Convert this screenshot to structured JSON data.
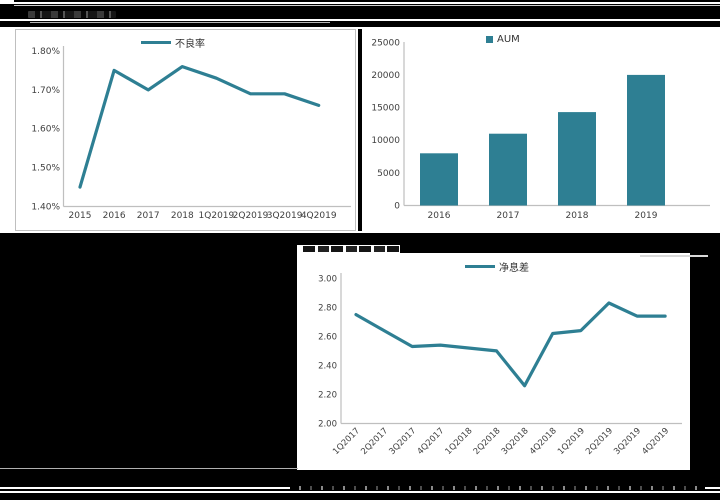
{
  "page": {
    "background_color": "#ffffff",
    "banner_color": "#000000",
    "accent_color": "#2e7f93",
    "axis_color": "#bfbfbf",
    "tick_text_color": "#404040",
    "note": "three financial charts separated by redacted (blacked-out) title banners"
  },
  "banners": {
    "top_redacted": true,
    "middle_redacted": true,
    "footer_redacted": true
  },
  "chart_data": [
    {
      "type": "line",
      "title": "",
      "title_redacted": false,
      "legend_position": "top-center",
      "grid": false,
      "line_color": "#2e7f93",
      "categories": [
        "2015",
        "2016",
        "2017",
        "2018",
        "1Q2019",
        "2Q2019",
        "3Q2019",
        "4Q2019"
      ],
      "series": [
        {
          "name": "不良率",
          "values": [
            1.45,
            1.75,
            1.7,
            1.76,
            1.73,
            1.69,
            1.69,
            1.66
          ]
        }
      ],
      "ylim": [
        1.4,
        1.8
      ],
      "yticks": [
        "1.40%",
        "1.50%",
        "1.60%",
        "1.70%",
        "1.80%"
      ],
      "xlabel": "",
      "ylabel": ""
    },
    {
      "type": "bar",
      "title": "",
      "title_redacted": false,
      "legend_position": "top-center",
      "grid": false,
      "bar_color": "#2e7f93",
      "categories": [
        "2016",
        "2017",
        "2018",
        "2019"
      ],
      "series": [
        {
          "name": "AUM",
          "values": [
            8000,
            11000,
            14300,
            20000
          ]
        }
      ],
      "ylim": [
        0,
        25000
      ],
      "yticks": [
        "0",
        "5000",
        "10000",
        "15000",
        "20000",
        "25000"
      ],
      "xlabel": "",
      "ylabel": ""
    },
    {
      "type": "line",
      "title": "",
      "title_redacted": true,
      "legend_position": "top-center",
      "grid": false,
      "line_color": "#2e7f93",
      "x_label_rotation": -45,
      "categories": [
        "1Q2017",
        "2Q2017",
        "3Q2017",
        "4Q2017",
        "1Q2018",
        "2Q2018",
        "3Q2018",
        "4Q2018",
        "1Q2019",
        "2Q2019",
        "3Q2019",
        "4Q2019"
      ],
      "series": [
        {
          "name": "净息差",
          "values": [
            2.75,
            2.64,
            2.53,
            2.54,
            2.52,
            2.5,
            2.26,
            2.62,
            2.64,
            2.83,
            2.74,
            2.74
          ]
        }
      ],
      "ylim": [
        2.0,
        3.0
      ],
      "yticks": [
        "2.00",
        "2.20",
        "2.40",
        "2.60",
        "2.80",
        "3.00"
      ],
      "xlabel": "",
      "ylabel": ""
    }
  ]
}
